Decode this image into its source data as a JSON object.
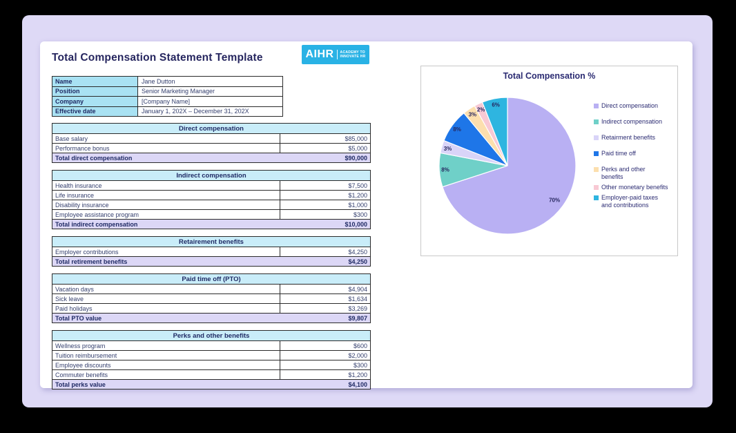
{
  "page": {
    "background": "#000000",
    "surface": "#ded9f6",
    "card": "#ffffff"
  },
  "header": {
    "title": "Total Compensation Statement Template",
    "logo": {
      "text": "AIHR",
      "tagline_line1": "ACADEMY TO",
      "tagline_line2": "INNOVATE HR",
      "bg": "#29b2e5"
    }
  },
  "employee_info": {
    "rows": [
      {
        "label": "Name",
        "value": "Jane Dutton"
      },
      {
        "label": "Position",
        "value": "Senior Marketing Manager"
      },
      {
        "label": "Company",
        "value": "[Company Name]"
      },
      {
        "label": "Effective date",
        "value": "January 1, 202X – December 31, 202X"
      }
    ]
  },
  "sections": [
    {
      "title": "Direct compensation",
      "rows": [
        {
          "label": "Base salary",
          "value": "$85,000"
        },
        {
          "label": "Performance bonus",
          "value": "$5,000"
        }
      ],
      "total": {
        "label": "Total direct compensation",
        "value": "$90,000"
      }
    },
    {
      "title": "Indirect compensation",
      "rows": [
        {
          "label": "Health insurance",
          "value": "$7,500"
        },
        {
          "label": "Life insurance",
          "value": "$1,200"
        },
        {
          "label": "Disability insurance",
          "value": "$1,000"
        },
        {
          "label": "Employee assistance program",
          "value": "$300"
        }
      ],
      "total": {
        "label": "Total indirect compensation",
        "value": "$10,000"
      }
    },
    {
      "title": "Retairement benefits",
      "rows": [
        {
          "label": "Employer contributions",
          "value": "$4,250"
        }
      ],
      "total": {
        "label": "Total retirement benefits",
        "value": "$4,250"
      }
    },
    {
      "title": "Paid time off (PTO)",
      "rows": [
        {
          "label": "Vacation days",
          "value": "$4,904"
        },
        {
          "label": "Sick leave",
          "value": "$1,634"
        },
        {
          "label": "Paid holidays",
          "value": "$3,269"
        }
      ],
      "total": {
        "label": "Total PTO value",
        "value": "$9,807"
      }
    },
    {
      "title": "Perks and other benefits",
      "rows": [
        {
          "label": "Wellness program",
          "value": "$600"
        },
        {
          "label": "Tuition reimbursement",
          "value": "$2,000"
        },
        {
          "label": "Employee discounts",
          "value": "$300"
        },
        {
          "label": "Commuter benefits",
          "value": "$1,200"
        }
      ],
      "total": {
        "label": "Total perks value",
        "value": "$4,100"
      }
    }
  ],
  "chart_data": {
    "type": "pie",
    "title": "Total Compensation %",
    "legend_position": "right",
    "slices": [
      {
        "label": "Direct compensation",
        "value": 70,
        "pct": "70%",
        "color": "#b9b0f3"
      },
      {
        "label": "Indirect compensation",
        "value": 8,
        "pct": "8%",
        "color": "#6fd0c8"
      },
      {
        "label": "Retairment benefits",
        "value": 3,
        "pct": "3%",
        "color": "#d9d4f8"
      },
      {
        "label": "Paid time off",
        "value": 8,
        "pct": "8%",
        "color": "#1e76e8"
      },
      {
        "label": "Perks and other benefits",
        "value": 3,
        "pct": "3%",
        "color": "#fcdfae"
      },
      {
        "label": "Other monetary benefits",
        "value": 2,
        "pct": "2%",
        "color": "#f8c9d4"
      },
      {
        "label": "Employer-paid taxes and contributions",
        "value": 6,
        "pct": "6%",
        "color": "#2eb5e0"
      }
    ],
    "label_color": "#26265f"
  }
}
